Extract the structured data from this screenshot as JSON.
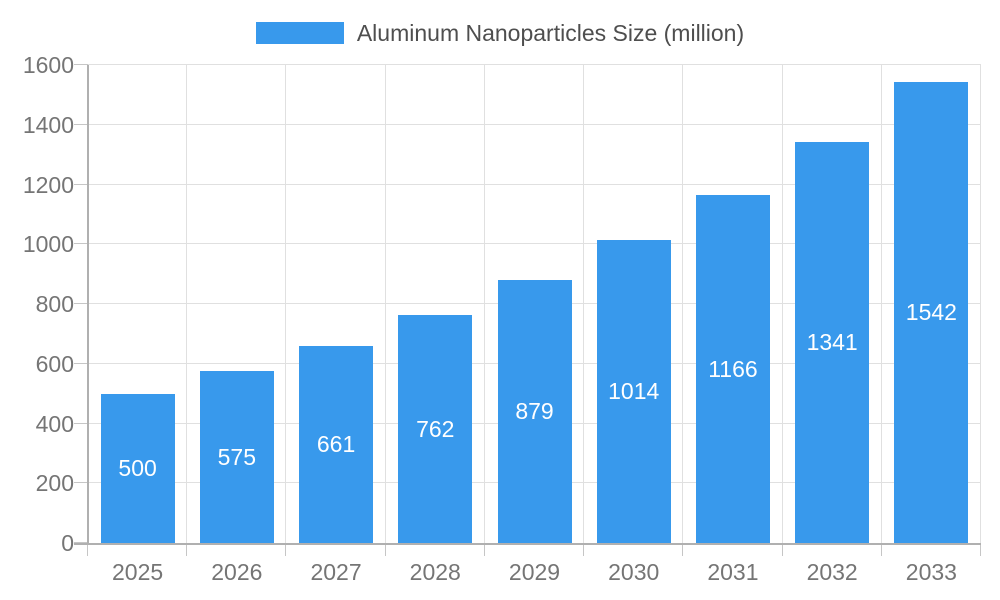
{
  "legend": {
    "label": "Aluminum Nanoparticles Size (million)"
  },
  "chart_data": {
    "type": "bar",
    "title": "Aluminum Nanoparticles Size (million)",
    "categories": [
      "2025",
      "2026",
      "2027",
      "2028",
      "2029",
      "2030",
      "2031",
      "2032",
      "2033"
    ],
    "values": [
      500,
      575,
      661,
      762,
      879,
      1014,
      1166,
      1341,
      1542
    ],
    "series_name": "Aluminum Nanoparticles Size (million)",
    "xlabel": "",
    "ylabel": "",
    "ylim": [
      0,
      1600
    ],
    "ytick_interval": 200,
    "ytick_labels": [
      "0",
      "200",
      "400",
      "600",
      "800",
      "1000",
      "1200",
      "1400",
      "1600"
    ],
    "grid": true,
    "legend_position": "top",
    "value_labels_shown": true
  },
  "colors": {
    "bar": "#3899EC",
    "grid": "#E0E0E0",
    "axis": "#B0B0B0",
    "tick": "#C6C6C6",
    "tick_label": "#757575",
    "legend_text": "#4E4E4E",
    "value_label": "#FFFFFF"
  }
}
